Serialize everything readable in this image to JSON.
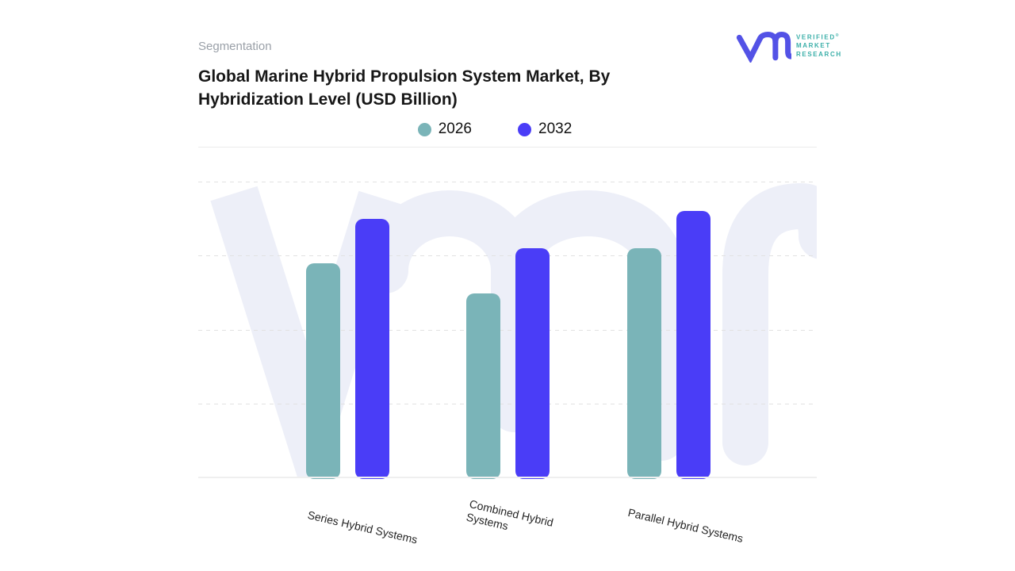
{
  "header": {
    "eyebrow": "Segmentation",
    "title_lines": [
      "Global Marine Hybrid Propulsion System Market, By",
      "Hybridization Level (USD Billion)"
    ]
  },
  "logo": {
    "brand_lines": [
      "VERIFIED",
      "MARKET",
      "RESEARCH"
    ],
    "registered_mark": "®",
    "mark_color": "#5352e6",
    "text_color": "#3bafa9"
  },
  "chart_data": {
    "type": "bar",
    "title": "Global Marine Hybrid Propulsion System Market, By Hybridization Level (USD Billion)",
    "value_unit": "USD Billion",
    "categories": [
      "Series Hybrid Systems",
      "Combined Hybrid\nSystems",
      "Parallel Hybrid Systems"
    ],
    "series": [
      {
        "name": "2026",
        "color": "#7ab4b8",
        "values": [
          2.9,
          2.5,
          3.1
        ]
      },
      {
        "name": "2032",
        "color": "#4a3df7",
        "values": [
          3.5,
          3.1,
          3.6
        ]
      }
    ],
    "ylim": [
      0,
      4
    ],
    "y_axis_labels_visible": false,
    "values_note": "no numeric axis labels shown; values estimated in gridline units (4 dashed gridlines above baseline)",
    "grid": "horizontal dashed",
    "legend_position": "top-center",
    "watermark_color": "#edeff8"
  }
}
